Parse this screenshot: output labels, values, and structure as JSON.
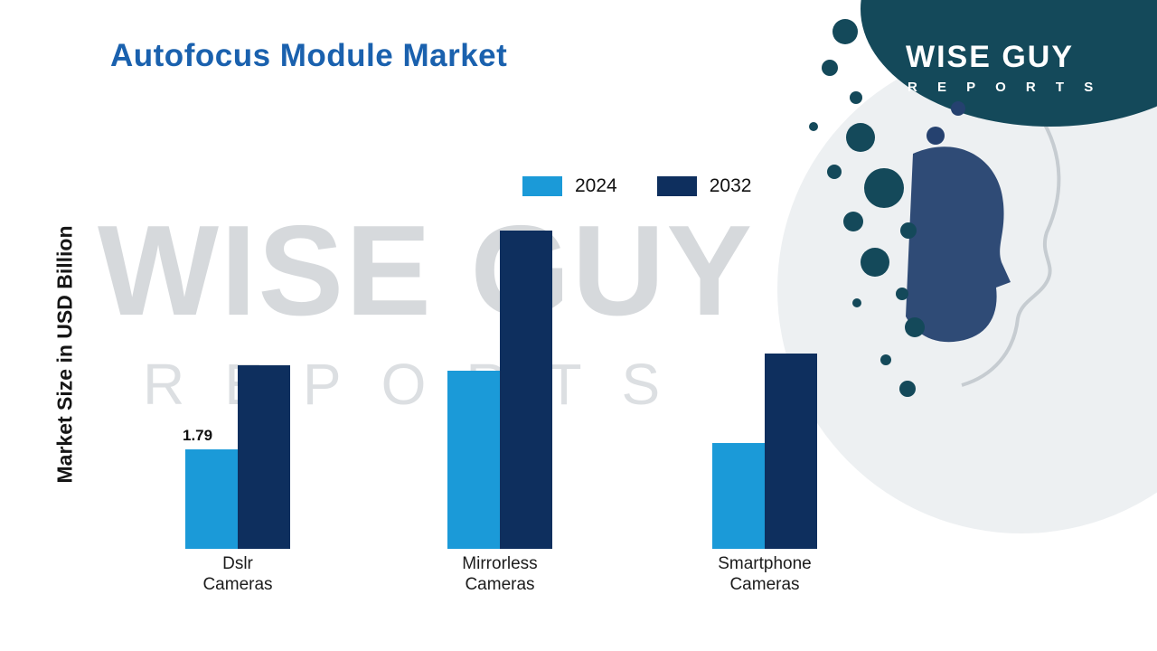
{
  "page": {
    "title": "Autofocus Module Market"
  },
  "logo": {
    "wordmark": "WISE GUY",
    "subtext": "R E P O R T S"
  },
  "watermark": {
    "wordmark": "WISE GUY",
    "subtext": "REPORTS"
  },
  "colors": {
    "title_blue": "#1a61ae",
    "series_2024": "#1b9ad8",
    "series_2032": "#0e2f5e",
    "logo_teal": "#14495a"
  },
  "chart_data": {
    "type": "bar",
    "title": "Autofocus Module Market",
    "xlabel": "",
    "ylabel": "Market Size in USD Billion",
    "categories": [
      "Dslr Cameras",
      "Mirrorless Cameras",
      "Smartphone Cameras"
    ],
    "series": [
      {
        "name": "2024",
        "color": "#1b9ad8",
        "values": [
          1.79,
          3.2,
          1.9
        ]
      },
      {
        "name": "2032",
        "color": "#0e2f5e",
        "values": [
          3.3,
          5.7,
          3.5
        ]
      }
    ],
    "ylim": [
      0,
      6
    ],
    "grid": false,
    "legend_position": "top",
    "annotations": [
      {
        "category_index": 0,
        "series_index": 0,
        "text": "1.79"
      }
    ]
  }
}
